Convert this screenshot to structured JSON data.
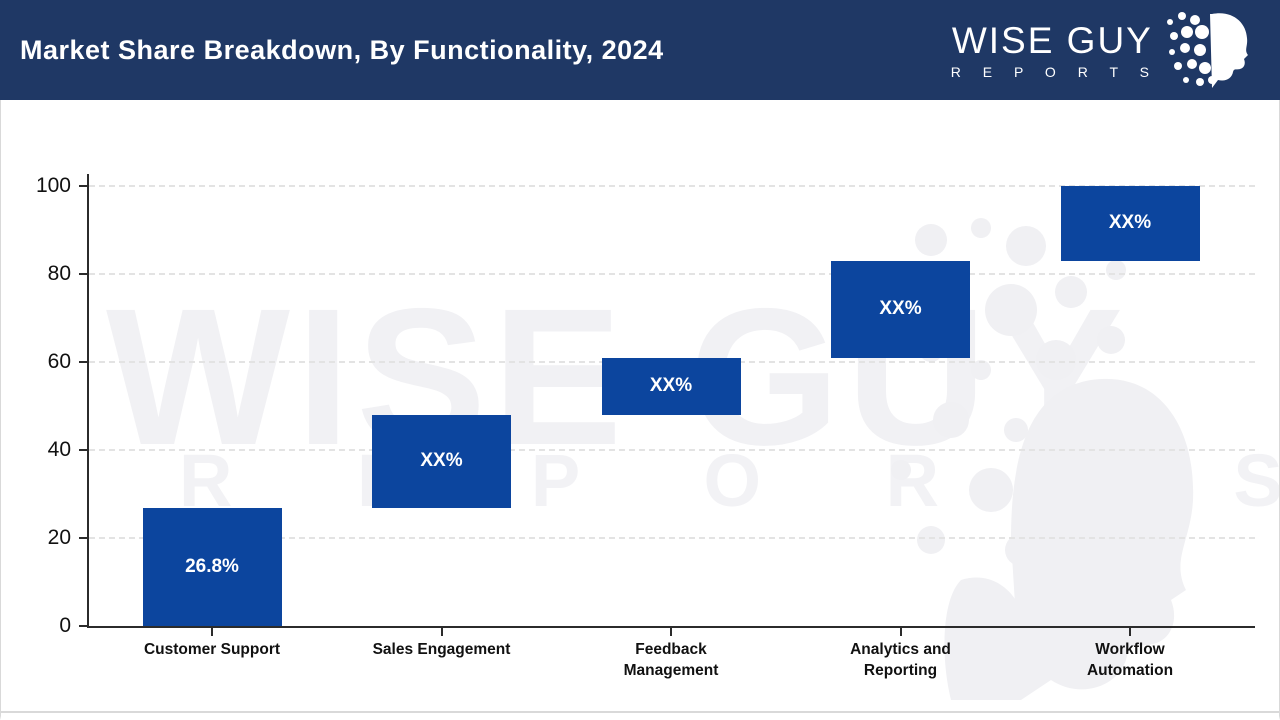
{
  "header": {
    "title": "Market Share Breakdown, By Functionality, 2024",
    "logo": {
      "name": "WISE GUY",
      "sub": "R E P O R T S"
    }
  },
  "watermark": {
    "line1": "WISE GUY",
    "line2": "R E P O R T S"
  },
  "colors": {
    "header_bg": "#1f3865",
    "bar": "#0c459e",
    "bar_label": "#ffffff",
    "grid": "#e3e3e3",
    "axis": "#2b2b2b",
    "watermark": "#f1f1f4"
  },
  "chart_data": {
    "type": "bar",
    "variant": "waterfall",
    "title": "Market Share Breakdown, By Functionality, 2024",
    "categories": [
      "Customer Support",
      "Sales Engagement",
      "Feedback\nManagement",
      "Analytics and\nReporting",
      "Workflow\nAutomation"
    ],
    "segments": [
      {
        "category": "Customer Support",
        "start": 0,
        "end": 26.8,
        "label": "26.8%"
      },
      {
        "category": "Sales Engagement",
        "start": 26.8,
        "end": 48,
        "label": "XX%"
      },
      {
        "category": "Feedback Management",
        "start": 48,
        "end": 61,
        "label": "XX%"
      },
      {
        "category": "Analytics and Reporting",
        "start": 61,
        "end": 83,
        "label": "XX%"
      },
      {
        "category": "Workflow Automation",
        "start": 83,
        "end": 100,
        "label": "XX%"
      }
    ],
    "ylim": [
      0,
      100
    ],
    "yticks": [
      0,
      20,
      40,
      60,
      80,
      100
    ],
    "xlabel": "",
    "ylabel": "",
    "grid": "horizontal-dashed",
    "legend": "none",
    "bar_color": "#0c459e"
  }
}
